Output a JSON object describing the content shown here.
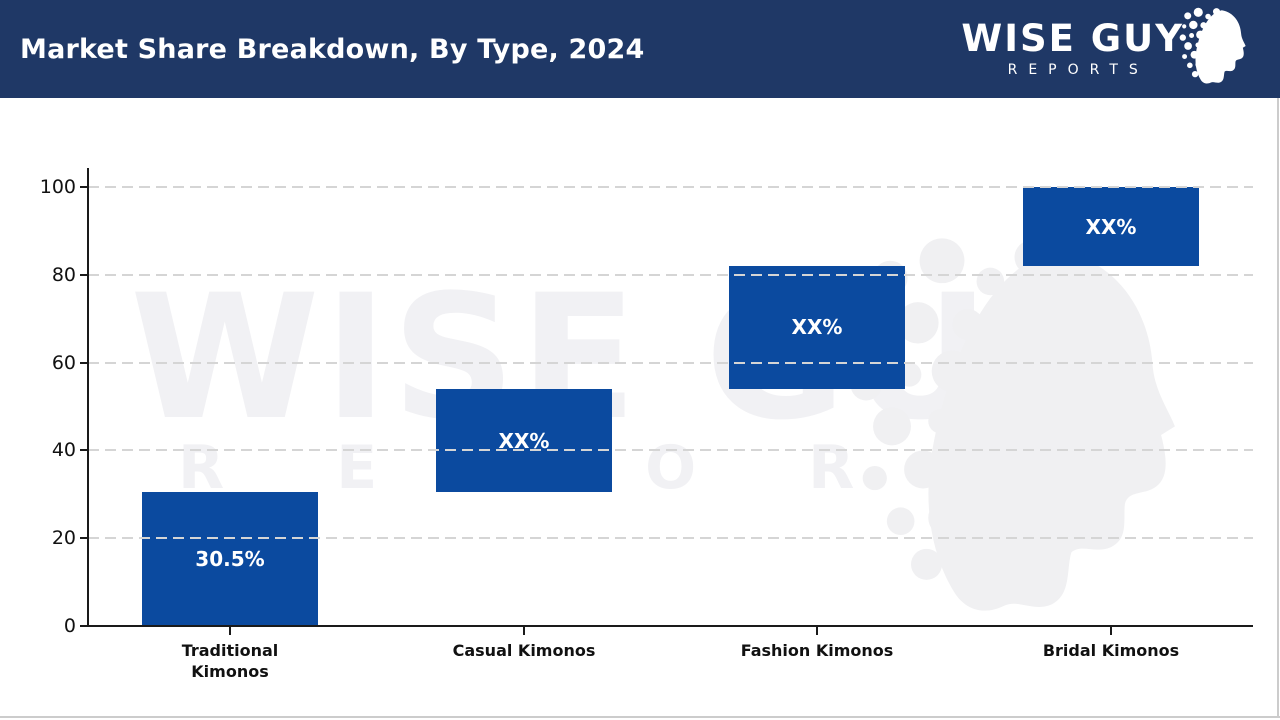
{
  "header": {
    "title": "Market Share Breakdown, By Type, 2024",
    "logo": {
      "primary": "WISE GUY",
      "secondary": "REPORTS"
    }
  },
  "watermark": {
    "primary": "WISE GUY",
    "secondary": "REPORTS"
  },
  "chart_data": {
    "type": "bar",
    "subtype": "waterfall",
    "title": "Market Share Breakdown, By Type, 2024",
    "categories": [
      "Traditional\nKimonos",
      "Casual Kimonos",
      "Fashion Kimonos",
      "Bridal Kimonos"
    ],
    "segments": [
      {
        "category": "Traditional Kimonos",
        "start": 0,
        "end": 30.5,
        "label": "30.5%"
      },
      {
        "category": "Casual Kimonos",
        "start": 30.5,
        "end": 54,
        "label": "XX%"
      },
      {
        "category": "Fashion Kimonos",
        "start": 54,
        "end": 82,
        "label": "XX%"
      },
      {
        "category": "Bridal Kimonos",
        "start": 82,
        "end": 100,
        "label": "XX%"
      }
    ],
    "ylim": [
      0,
      100
    ],
    "yticks": [
      0,
      20,
      40,
      60,
      80,
      100
    ],
    "xlabel": "",
    "ylabel": "",
    "legend": "none",
    "grid": "horizontal-dashed",
    "colors": {
      "bar": "#0b4a9f",
      "bar_label": "#ffffff",
      "header_bg": "#1f3866",
      "axis": "#1a1a1a",
      "gridline": "#d5d5d5",
      "watermark": "#f1f1f4"
    }
  }
}
